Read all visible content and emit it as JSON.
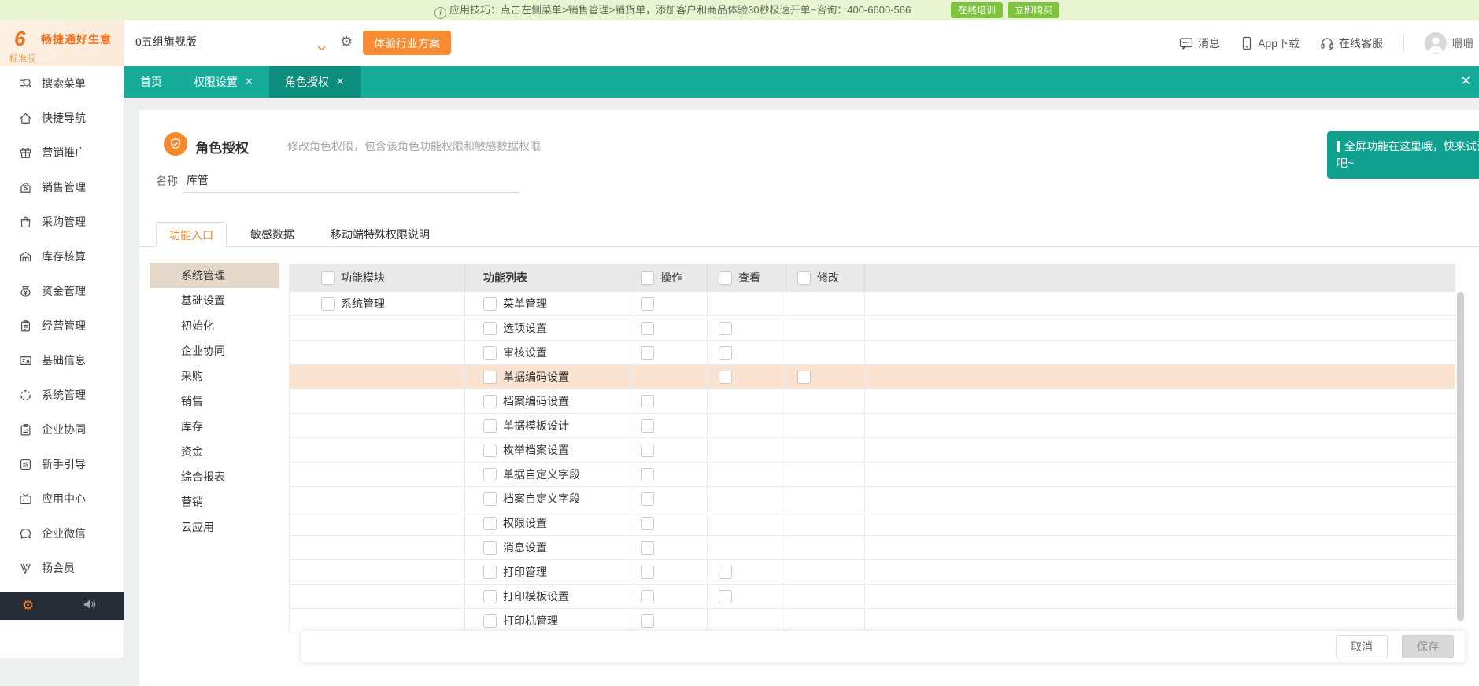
{
  "topbar": {
    "tip": "应用技巧：点击左侧菜单>销售管理>销货单，添加客户和商品体验30秒极速开单~咨询：400-6600-566",
    "training_label": "在线培训",
    "buy_label": "立即购买"
  },
  "header": {
    "logo_mark": "6",
    "logo_title": "畅捷通好生意",
    "logo_edition": "标准版",
    "org_value": "0五组旗舰版",
    "solution_label": "体验行业方案",
    "messages_label": "消息",
    "app_label": "App下载",
    "service_label": "在线客服",
    "username": "珊珊"
  },
  "tabbar": {
    "tabs": [
      {
        "key": "home",
        "label": "首页",
        "closable": false,
        "active": false
      },
      {
        "key": "permission-settings",
        "label": "权限设置",
        "closable": true,
        "active": false
      },
      {
        "key": "role-authorization",
        "label": "角色授权",
        "closable": true,
        "active": true
      }
    ]
  },
  "sidebar": {
    "items": [
      {
        "key": "search",
        "label": "搜索菜单",
        "icon": "search-icon"
      },
      {
        "key": "quick-nav",
        "label": "快捷导航",
        "icon": "home-icon"
      },
      {
        "key": "marketing-promo",
        "label": "营销推广",
        "icon": "gift-icon"
      },
      {
        "key": "sales",
        "label": "销售管理",
        "icon": "sales-icon"
      },
      {
        "key": "purchase",
        "label": "采购管理",
        "icon": "purchase-icon"
      },
      {
        "key": "inventory",
        "label": "库存核算",
        "icon": "inventory-icon"
      },
      {
        "key": "funds",
        "label": "资金管理",
        "icon": "money-icon"
      },
      {
        "key": "operations",
        "label": "经营管理",
        "icon": "operations-icon"
      },
      {
        "key": "base-info",
        "label": "基础信息",
        "icon": "base-info-icon"
      },
      {
        "key": "system",
        "label": "系统管理",
        "icon": "system-icon"
      },
      {
        "key": "collab",
        "label": "企业协同",
        "icon": "collab-icon"
      },
      {
        "key": "guide",
        "label": "新手引导",
        "icon": "guide-icon"
      },
      {
        "key": "app-center",
        "label": "应用中心",
        "icon": "app-center-icon"
      },
      {
        "key": "wechat",
        "label": "企业微信",
        "icon": "wechat-icon"
      },
      {
        "key": "member",
        "label": "畅会员",
        "icon": "member-icon"
      }
    ]
  },
  "page": {
    "title": "角色授权",
    "desc": "修改角色权限，包含该角色功能权限和敏感数据权限",
    "name_label": "名称",
    "name_value": "库管",
    "tabs": [
      {
        "key": "function-entry",
        "label": "功能入口",
        "active": true
      },
      {
        "key": "sensitive-data",
        "label": "敏感数据",
        "active": false
      },
      {
        "key": "mobile-permission-note",
        "label": "移动端特殊权限说明",
        "active": false
      }
    ],
    "tooltip": "全屏功能在这里哦，快来试试吧~"
  },
  "submenu": {
    "selected": "系统管理",
    "items": [
      {
        "key": "system",
        "label": "系统管理"
      },
      {
        "key": "basic-settings",
        "label": "基础设置"
      },
      {
        "key": "initialization",
        "label": "初始化"
      },
      {
        "key": "collab",
        "label": "企业协同"
      },
      {
        "key": "purchase",
        "label": "采购"
      },
      {
        "key": "sales",
        "label": "销售"
      },
      {
        "key": "inventory",
        "label": "库存"
      },
      {
        "key": "funds",
        "label": "资金"
      },
      {
        "key": "reports",
        "label": "综合报表"
      },
      {
        "key": "marketing",
        "label": "营销"
      },
      {
        "key": "cloud-apps",
        "label": "云应用"
      }
    ]
  },
  "table": {
    "columns": [
      "功能模块",
      "功能列表",
      "操作",
      "查看",
      "修改"
    ],
    "rows": [
      {
        "module": "系统管理",
        "feature": "菜单管理",
        "op": true,
        "view": false,
        "edit": false,
        "highlighted": false
      },
      {
        "module": "",
        "feature": "选项设置",
        "op": true,
        "view": true,
        "edit": false,
        "highlighted": false
      },
      {
        "module": "",
        "feature": "审核设置",
        "op": true,
        "view": true,
        "edit": false,
        "highlighted": false
      },
      {
        "module": "",
        "feature": "单据编码设置",
        "op": false,
        "view": true,
        "edit": true,
        "highlighted": true
      },
      {
        "module": "",
        "feature": "档案编码设置",
        "op": true,
        "view": false,
        "edit": false,
        "highlighted": false
      },
      {
        "module": "",
        "feature": "单据模板设计",
        "op": true,
        "view": false,
        "edit": false,
        "highlighted": false
      },
      {
        "module": "",
        "feature": "枚举档案设置",
        "op": true,
        "view": false,
        "edit": false,
        "highlighted": false
      },
      {
        "module": "",
        "feature": "单据自定义字段",
        "op": true,
        "view": false,
        "edit": false,
        "highlighted": false
      },
      {
        "module": "",
        "feature": "档案自定义字段",
        "op": true,
        "view": false,
        "edit": false,
        "highlighted": false
      },
      {
        "module": "",
        "feature": "权限设置",
        "op": true,
        "view": false,
        "edit": false,
        "highlighted": false
      },
      {
        "module": "",
        "feature": "消息设置",
        "op": true,
        "view": false,
        "edit": false,
        "highlighted": false
      },
      {
        "module": "",
        "feature": "打印管理",
        "op": true,
        "view": true,
        "edit": false,
        "highlighted": false
      },
      {
        "module": "",
        "feature": "打印模板设置",
        "op": true,
        "view": true,
        "edit": false,
        "highlighted": false
      },
      {
        "module": "",
        "feature": "打印机管理",
        "op": true,
        "view": false,
        "edit": false,
        "highlighted": false
      }
    ]
  },
  "footer": {
    "cancel_label": "取消",
    "save_label": "保存"
  }
}
